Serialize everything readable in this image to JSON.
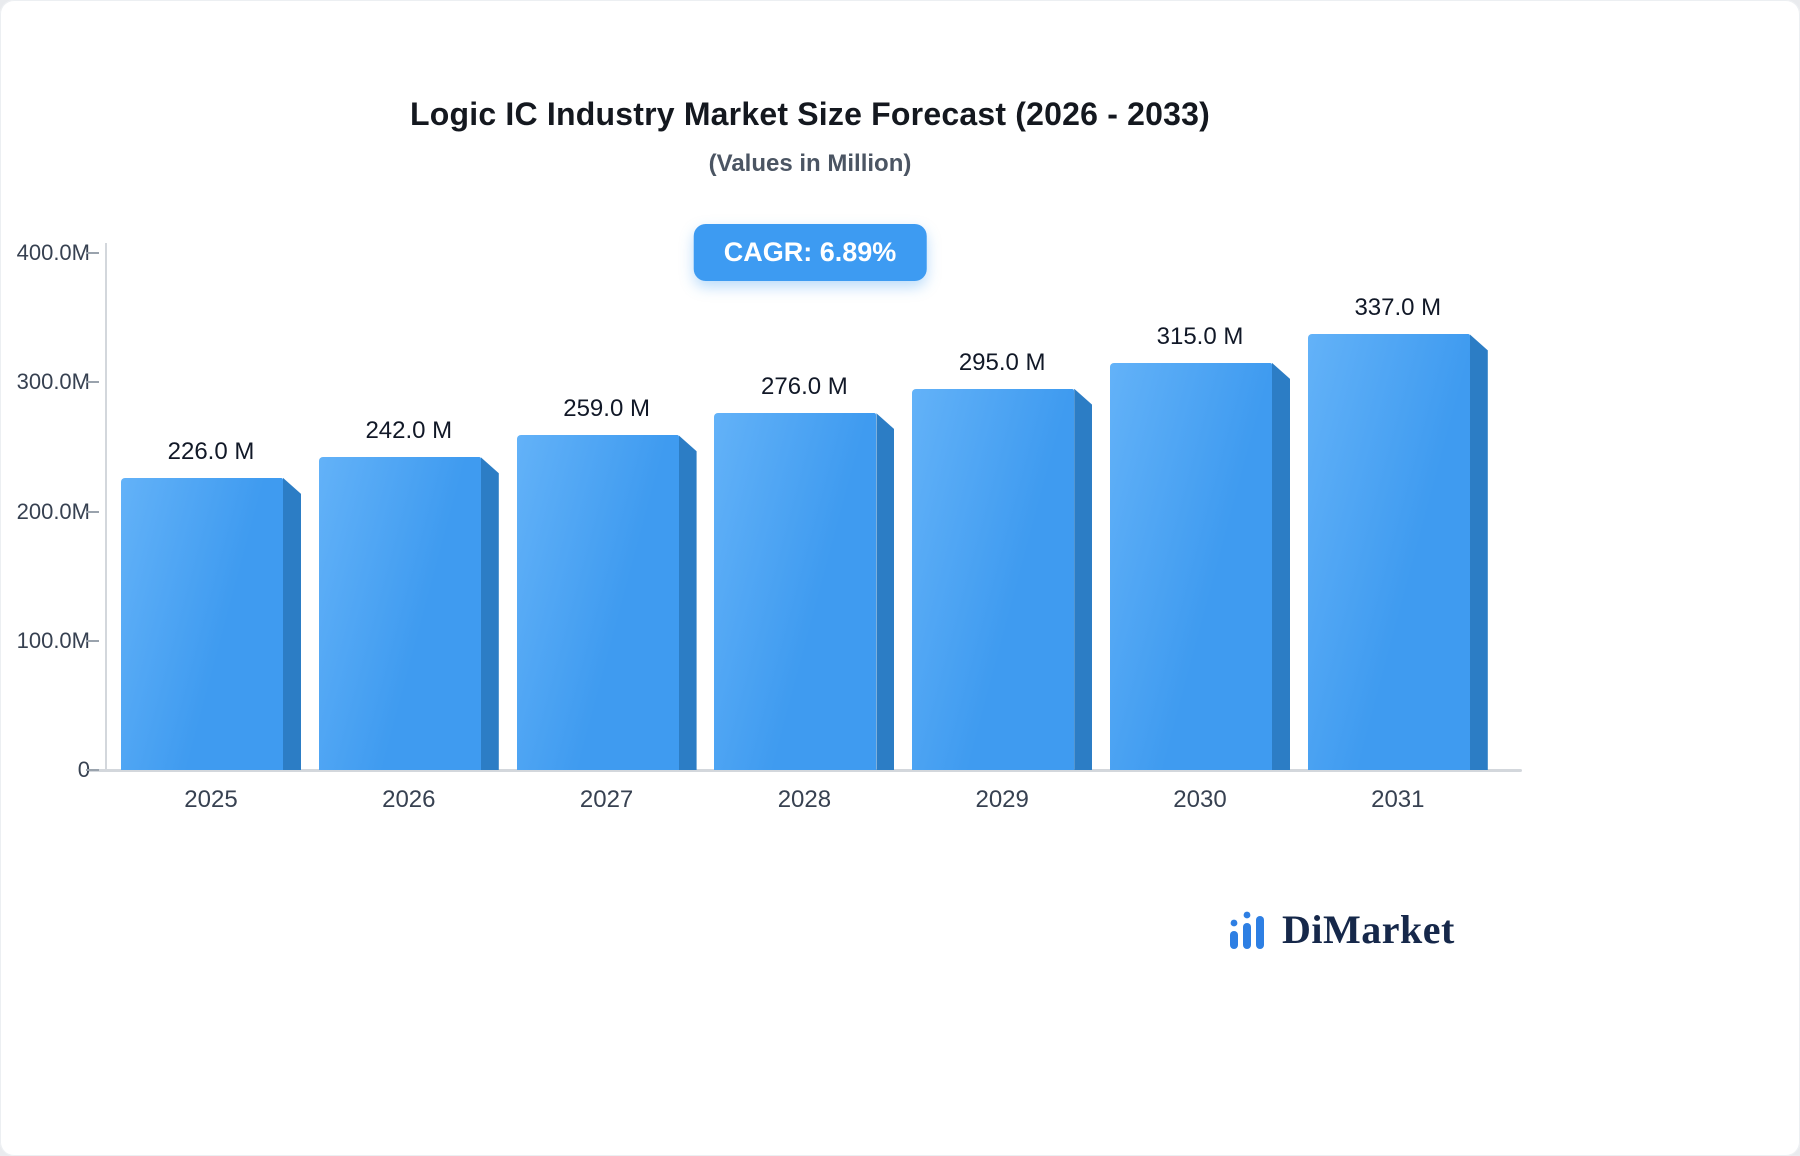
{
  "header": {
    "title": "Logic IC Industry Market Size Forecast (2026 - 2033)",
    "subtitle": "(Values in Million)"
  },
  "badge": {
    "label": "CAGR: 6.89%"
  },
  "chart_data": {
    "type": "bar",
    "title": "Logic IC Industry Market Size Forecast (2026 - 2033)",
    "subtitle": "(Values in Million)",
    "categories": [
      "2025",
      "2026",
      "2027",
      "2028",
      "2029",
      "2030",
      "2031"
    ],
    "values": [
      226.0,
      242.0,
      259.0,
      276.0,
      295.0,
      315.0,
      337.0
    ],
    "value_labels": [
      "226.0 M",
      "242.0 M",
      "259.0 M",
      "276.0 M",
      "295.0 M",
      "315.0 M",
      "337.0 M"
    ],
    "ylim": [
      0,
      400
    ],
    "yticks": [
      {
        "value": 400,
        "label": "400.0M"
      },
      {
        "value": 300,
        "label": "300.0M"
      },
      {
        "value": 200,
        "label": "200.0M"
      },
      {
        "value": 100,
        "label": "100.0M"
      },
      {
        "value": 0,
        "label": "0"
      }
    ],
    "grid": "off",
    "legend": "none",
    "colors": {
      "bar_main": "#3f9bf0",
      "bar_light": "#63b2f8",
      "bar_side": "#2c7dc5",
      "badge_bg": "#3d9bf2",
      "axis": "#d3d7dc",
      "tick": "#9aa3ad",
      "logo_blue": "#2e7fe3",
      "logo_navy": "#16284a"
    }
  },
  "branding": {
    "logo_text": "DiMarket",
    "logo_icon": "bar-chart-icon"
  }
}
